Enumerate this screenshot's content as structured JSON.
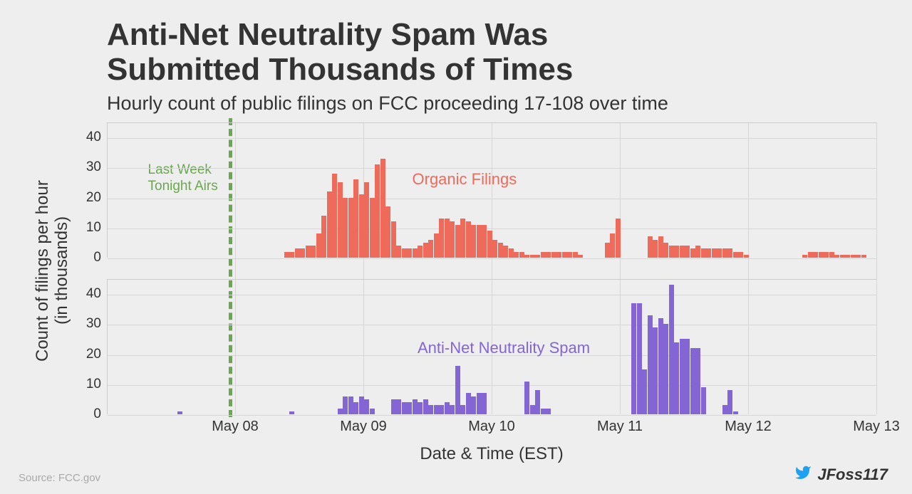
{
  "title_line1": "Anti-Net Neutrality Spam Was",
  "title_line2": "Submitted Thousands of Times",
  "subtitle": "Hourly count of public filings on FCC proceeding 17-108 over time",
  "ylabel_line1": "Count of filings per hour",
  "ylabel_line2": "(in thousands)",
  "xlabel": "Date & Time (EST)",
  "source": "Source: FCC.gov",
  "credit": "JFoss117",
  "background_color": "#eeeeee",
  "grid_color": "#d7d7d7",
  "text_color": "#333333",
  "annotation_color": "#6aa84f",
  "twitter_color": "#1da1f2",
  "title_fontsize": 44,
  "subtitle_fontsize": 27,
  "axis_label_fontsize": 24,
  "tick_fontsize": 20,
  "facet_label_fontsize": 22,
  "annotation_fontsize": 19,
  "chart": {
    "type": "bar",
    "x_start_hour": 0,
    "x_end_hour": 144,
    "hours_per_day": 24,
    "x_tick_labels": [
      "May 08",
      "May 09",
      "May 10",
      "May 11",
      "May 12",
      "May 13"
    ],
    "x_tick_hours": [
      24,
      48,
      72,
      96,
      120,
      144
    ],
    "y_ticks": [
      0,
      10,
      20,
      30,
      40
    ],
    "ylim": [
      0,
      45
    ],
    "dashed_vline_hour": 23,
    "dashed_vline_label_line1": "Last Week",
    "dashed_vline_label_line2": "Tonight Airs",
    "panels": [
      {
        "label": "Organic Filings",
        "color": "#ee6a5b",
        "label_x_hour": 57,
        "label_y_val": 26,
        "values": [
          0,
          0,
          0,
          0,
          0,
          0,
          0,
          0,
          0,
          0,
          0,
          0,
          0,
          0,
          0,
          0,
          0,
          0,
          0,
          0,
          0,
          0,
          0,
          0,
          0,
          0,
          0,
          0,
          0,
          0,
          0,
          0,
          0,
          2,
          2,
          3,
          3,
          4,
          4,
          8,
          14,
          22,
          28,
          25,
          20,
          20,
          26,
          21,
          25,
          20,
          31,
          33,
          17,
          12,
          4,
          3,
          3,
          3,
          4,
          5,
          6,
          8,
          13,
          13,
          12,
          11,
          13,
          12,
          11,
          11,
          11,
          9,
          6,
          5,
          4,
          3,
          2,
          2,
          1,
          1,
          1,
          2,
          2,
          2,
          2,
          2,
          2,
          2,
          1,
          0,
          0,
          0,
          0,
          5,
          8,
          13,
          0,
          0,
          0,
          0,
          0,
          7,
          6,
          7,
          5,
          4,
          4,
          4,
          4,
          3,
          4,
          3,
          3,
          3,
          3,
          3,
          3,
          2,
          2,
          1,
          0,
          0,
          0,
          0,
          0,
          0,
          0,
          0,
          0,
          0,
          1,
          2,
          2,
          2,
          2,
          2,
          1,
          1,
          1,
          1,
          1,
          1,
          0,
          0
        ]
      },
      {
        "label": "Anti-Net Neutrality Spam",
        "color": "#8465d4",
        "label_x_hour": 58,
        "label_y_val": 22,
        "values": [
          0,
          0,
          0,
          0,
          0,
          0,
          0,
          0,
          0,
          0,
          0,
          0,
          0,
          1,
          0,
          0,
          0,
          0,
          0,
          0,
          0,
          0,
          0,
          0,
          0,
          0,
          0,
          0,
          0,
          0,
          0,
          0,
          0,
          0,
          1,
          0,
          0,
          0,
          0,
          0,
          0,
          0,
          0,
          2,
          6,
          6,
          4,
          6,
          5,
          2,
          0,
          0,
          0,
          5,
          5,
          4,
          4,
          5,
          4,
          5,
          3,
          3,
          3,
          4,
          3,
          16,
          3,
          7,
          6,
          7,
          7,
          0,
          0,
          0,
          0,
          0,
          0,
          0,
          11,
          3,
          8,
          2,
          2,
          0,
          0,
          0,
          0,
          0,
          0,
          0,
          0,
          0,
          0,
          0,
          0,
          0,
          0,
          0,
          37,
          37,
          15,
          33,
          29,
          32,
          30,
          43,
          24,
          25,
          25,
          22,
          22,
          9,
          0,
          0,
          0,
          3,
          8,
          1,
          0,
          0,
          0,
          0,
          0,
          0,
          0,
          0,
          0,
          0,
          0,
          0,
          0,
          0,
          0,
          0,
          0,
          0,
          0,
          0,
          0,
          0,
          0,
          0,
          0,
          0
        ]
      }
    ]
  }
}
